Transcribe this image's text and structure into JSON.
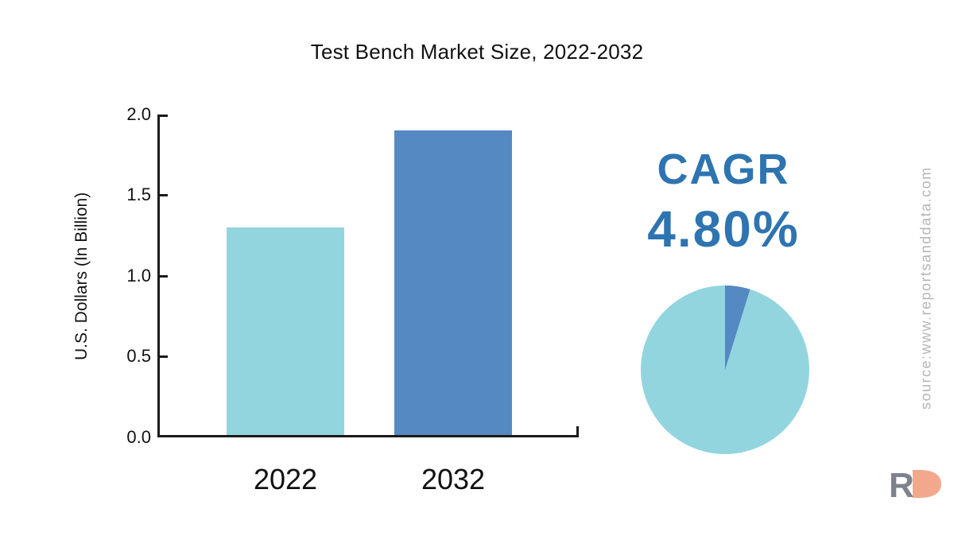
{
  "title": "Test Bench Market Size, 2022-2032",
  "chart_data": [
    {
      "type": "bar",
      "title": "Test Bench Market Size, 2022-2032",
      "xlabel": "",
      "ylabel": "U.S. Dollars (In Billion)",
      "categories": [
        "2022",
        "2032"
      ],
      "values": [
        1.3,
        1.9
      ],
      "ylim": [
        0,
        2.0
      ],
      "ytick_labels": [
        "0.0",
        "0.5",
        "1.0",
        "1.5",
        "2.0"
      ],
      "bar_colors": [
        "#92d5df",
        "#5589c2"
      ],
      "grid": false,
      "legend_position": "none"
    },
    {
      "type": "pie",
      "slices": [
        {
          "label": "CAGR",
          "value": 4.8,
          "color": "#5589c2"
        },
        {
          "label": "remainder",
          "value": 95.2,
          "color": "#92d5df"
        }
      ],
      "start_angle_deg": 0,
      "direction": "clockwise",
      "legend_position": "none"
    }
  ],
  "cagr": {
    "label": "CAGR",
    "value": "4.80%",
    "percent": 4.8,
    "color": "#2e74b0"
  },
  "source_note": "source:www.reportsanddata.com",
  "logo": {
    "r_letter": "R",
    "r_color": "#7d828e",
    "d_color": "#f2a88d"
  },
  "colors": {
    "background": "#ffffff",
    "axis": "#1a1a1a",
    "title_text": "#111111",
    "source_text": "#b5b5b5"
  }
}
